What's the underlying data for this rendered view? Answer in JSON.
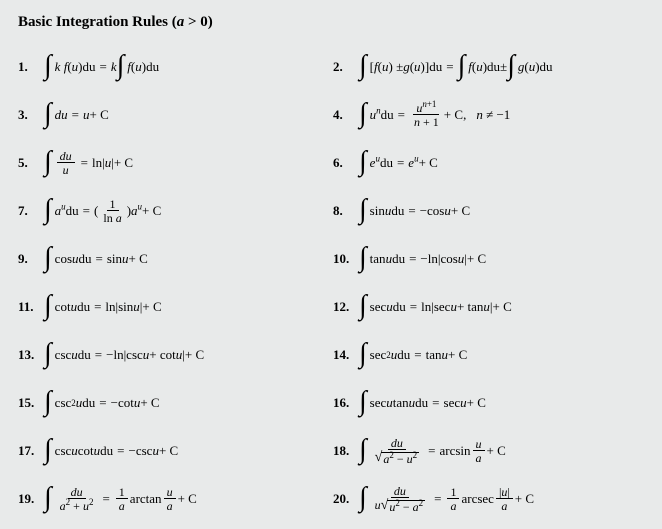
{
  "background_color": "#e8eaea",
  "text_color": "#000000",
  "font": "Times New Roman",
  "title_fontsize": 15,
  "body_fontsize": 13,
  "title": {
    "text": "Basic Integration Rules",
    "condition": "(a > 0)"
  },
  "rules": [
    {
      "n": 1,
      "tex": "∫ k f(u) du = k ∫ f(u) du"
    },
    {
      "n": 2,
      "tex": "∫ [f(u) ± g(u)] du = ∫ f(u) du ± ∫ g(u) du"
    },
    {
      "n": 3,
      "tex": "∫ du = u + C"
    },
    {
      "n": 4,
      "tex": "∫ u^n du = u^{n+1}/(n+1) + C,  n ≠ -1"
    },
    {
      "n": 5,
      "tex": "∫ du/u = ln|u| + C"
    },
    {
      "n": 6,
      "tex": "∫ e^u du = e^u + C"
    },
    {
      "n": 7,
      "tex": "∫ a^u du = (1/ln a) a^u + C"
    },
    {
      "n": 8,
      "tex": "∫ sin u du = -cos u + C"
    },
    {
      "n": 9,
      "tex": "∫ cos u du = sin u + C"
    },
    {
      "n": 10,
      "tex": "∫ tan u du = -ln|cos u| + C"
    },
    {
      "n": 11,
      "tex": "∫ cot u du = ln|sin u| + C"
    },
    {
      "n": 12,
      "tex": "∫ sec u du = ln|sec u + tan u| + C"
    },
    {
      "n": 13,
      "tex": "∫ csc u du = -ln|csc u + cot u| + C"
    },
    {
      "n": 14,
      "tex": "∫ sec^2 u du = tan u + C"
    },
    {
      "n": 15,
      "tex": "∫ csc^2 u du = -cot u + C"
    },
    {
      "n": 16,
      "tex": "∫ sec u tan u du = sec u + C"
    },
    {
      "n": 17,
      "tex": "∫ csc u cot u du = -csc u + C"
    },
    {
      "n": 18,
      "tex": "∫ du/√(a^2 - u^2) = arcsin(u/a) + C"
    },
    {
      "n": 19,
      "tex": "∫ du/(a^2 + u^2) = (1/a) arctan(u/a) + C"
    },
    {
      "n": 20,
      "tex": "∫ du/(u√(u^2 - a^2)) = (1/a) arcsec(|u|/a) + C"
    }
  ],
  "labels": {
    "eq": " = ",
    "plus_c": " + C",
    "du": " du",
    "neq": "n ≠ −1"
  }
}
